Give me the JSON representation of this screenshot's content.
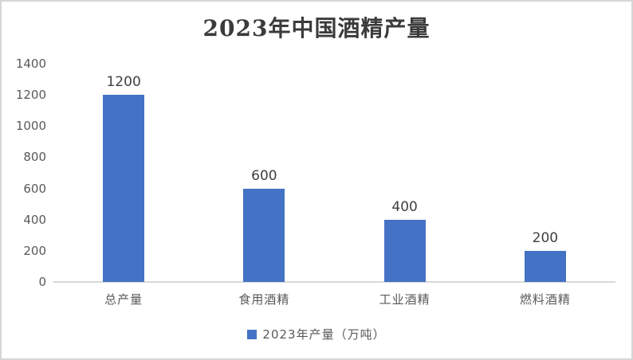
{
  "chart_data": {
    "type": "bar",
    "title": "2023年中国酒精产量",
    "categories": [
      "总产量",
      "食用酒精",
      "工业酒精",
      "燃料酒精"
    ],
    "values": [
      1200,
      600,
      400,
      200
    ],
    "data_labels": [
      "1200",
      "600",
      "400",
      "200"
    ],
    "y_ticks": [
      "0",
      "200",
      "400",
      "600",
      "800",
      "1000",
      "1200",
      "1400"
    ],
    "y_tick_values": [
      0,
      200,
      400,
      600,
      800,
      1000,
      1200,
      1400
    ],
    "ylim": [
      0,
      1400
    ],
    "grid": false,
    "legend": {
      "label": "2023年产量（万吨）",
      "position": "bottom"
    },
    "colors": {
      "bar": "#4472c4",
      "axis_line": "#d9d9d9",
      "title_text": "#3b3b3b",
      "axis_text": "#595959",
      "data_label_text": "#404040"
    }
  }
}
